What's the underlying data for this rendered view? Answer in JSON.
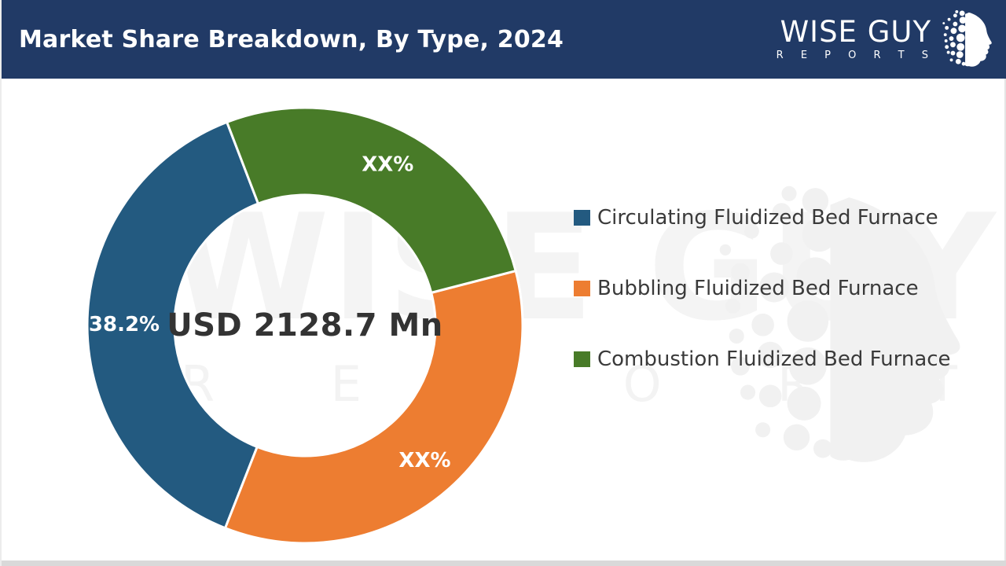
{
  "header": {
    "title": "Market Share Breakdown, By Type, 2024",
    "logo": {
      "name": "WISE GUY",
      "tagline": "R E P O R T S"
    }
  },
  "watermark": {
    "line1": "WISE GUY",
    "line2": "R E P O R T S"
  },
  "chart_data": {
    "type": "pie",
    "subtype": "donut",
    "title": "Market Share Breakdown, By Type, 2024",
    "center_label": "USD 2128.7 Mn",
    "legend_position": "right",
    "start_angle_deg": 111,
    "direction": "counterclockwise",
    "inner_radius_ratio": 0.6,
    "series": [
      {
        "name": "Circulating Fluidized Bed Furnace",
        "slice_label": "38.2%",
        "arc_pct": 38.2,
        "arc_pct_is_estimate": false,
        "color": "#235A80"
      },
      {
        "name": "Bubbling Fluidized Bed Furnace",
        "slice_label": "XX%",
        "arc_pct": 35.0,
        "arc_pct_is_estimate": true,
        "color": "#ED7D31"
      },
      {
        "name": "Combustion Fluidized Bed Furnace",
        "slice_label": "XX%",
        "arc_pct": 26.8,
        "arc_pct_is_estimate": true,
        "color": "#487B28"
      }
    ],
    "colors": {
      "header_bg": "#213A66",
      "slice_label_text": "#FFFFFF",
      "center_text": "#333333",
      "legend_text": "#3A3A3A",
      "watermark": "#F3F3F3",
      "footer_strip": "#D9D9D9"
    }
  }
}
